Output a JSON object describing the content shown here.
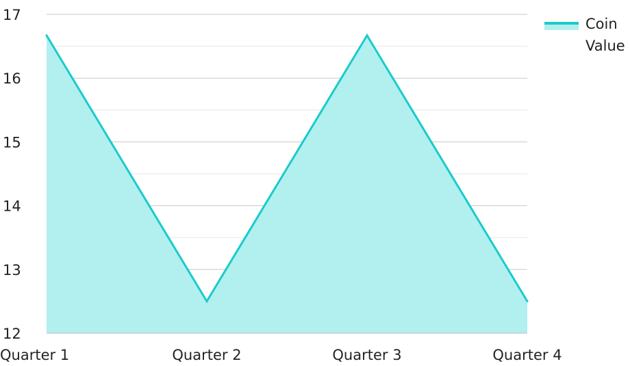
{
  "chart_data": {
    "type": "area",
    "title": "",
    "xlabel": "",
    "ylabel": "",
    "categories": [
      "Quarter 1",
      "Quarter 2",
      "Quarter 3",
      "Quarter 4"
    ],
    "series": [
      {
        "name": "Coin Value",
        "values": [
          16.67,
          12.5,
          16.67,
          12.5
        ],
        "line_color": "#19CBCB",
        "fill_color": "#B2EFEF"
      }
    ],
    "ylim": [
      12,
      17
    ],
    "yticks": [
      12,
      13,
      14,
      15,
      16,
      17
    ],
    "grid": true,
    "legend_position": "top-right",
    "legend": {
      "lines": [
        "Coin",
        "Value"
      ]
    }
  }
}
